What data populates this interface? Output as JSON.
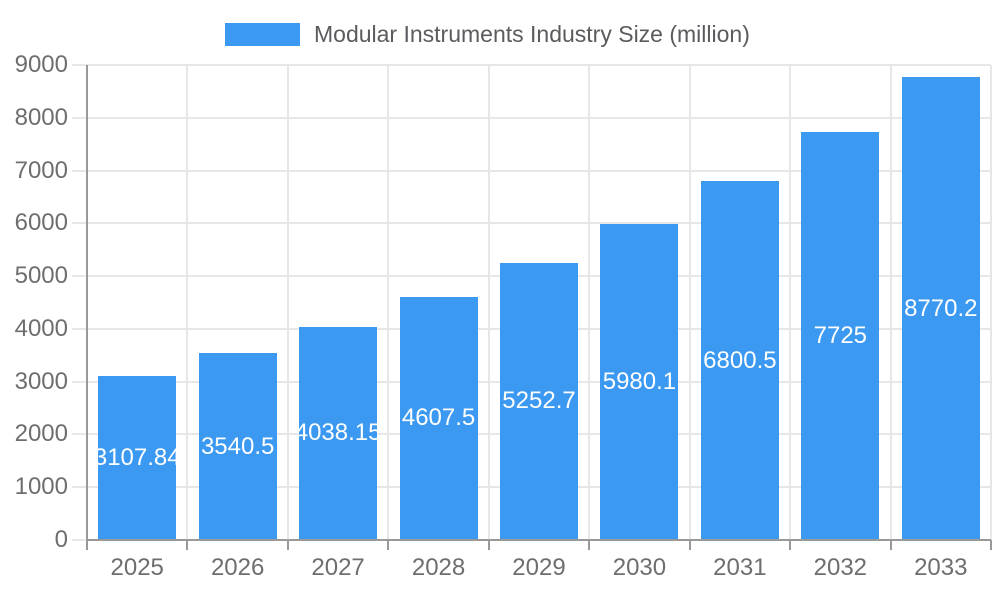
{
  "chart_data": {
    "type": "bar",
    "title": "Modular Instruments Industry Size (million)",
    "legend_position": "top",
    "legend": [
      {
        "label": "Modular Instruments Industry Size (million)",
        "color": "#3B99F1"
      }
    ],
    "categories": [
      "2025",
      "2026",
      "2027",
      "2028",
      "2029",
      "2030",
      "2031",
      "2032",
      "2033"
    ],
    "series": [
      {
        "name": "Modular Instruments Industry Size (million)",
        "values": [
          3107.84,
          3540.5,
          4038.15,
          4607.5,
          5252.7,
          5980.1,
          6800.5,
          7725,
          8770.2
        ]
      }
    ],
    "value_labels": [
      "3107.84",
      "3540.5",
      "4038.15",
      "4607.5",
      "5252.7",
      "5980.1",
      "6800.5",
      "7725",
      "8770.2"
    ],
    "xlabel": "",
    "ylabel": "",
    "ylim": [
      0,
      9000
    ],
    "ytick_interval": 1000,
    "ytick_labels": [
      "0",
      "1000",
      "2000",
      "3000",
      "4000",
      "5000",
      "6000",
      "7000",
      "8000",
      "9000"
    ],
    "grid": true,
    "colors": {
      "bar": "#3B99F1",
      "value_label_text": "#ffffff",
      "axis_text": "#6e6e6e",
      "title_text": "#595b5f",
      "gridline": "#e7e7e7",
      "axis_line": "#999999",
      "background": "#ffffff"
    }
  }
}
